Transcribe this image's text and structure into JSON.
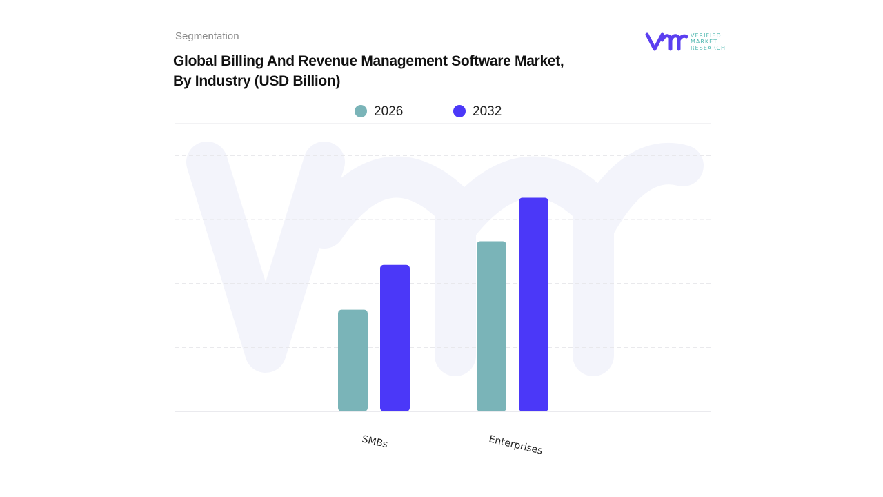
{
  "header": {
    "segment_label": "Segmentation",
    "title_line1": "Global Billing And Revenue Management Software Market,",
    "title_line2": "By Industry (USD Billion)"
  },
  "logo": {
    "text": "VERIFIED MARKET RESEARCH",
    "mark": "vmr"
  },
  "colors": {
    "series_2026": "#7ab4b8",
    "series_2032": "#4b38f8",
    "watermark": "#f3f4fb",
    "logo_teal": "#4fb8b0"
  },
  "chart_data": {
    "type": "bar",
    "title": "Global Billing And Revenue Management Software Market, By Industry (USD Billion)",
    "categories": [
      "SMBs",
      "Enterprises"
    ],
    "series": [
      {
        "name": "2026",
        "values": [
          1.59,
          2.66
        ]
      },
      {
        "name": "2032",
        "values": [
          2.29,
          3.34
        ]
      }
    ],
    "ylim": [
      0,
      4.5
    ],
    "gridlines": [
      1,
      2,
      3,
      4,
      4.5
    ],
    "grid": true,
    "y_tick_labels_shown": false,
    "legend_placement": "top-center",
    "xlabel": "",
    "ylabel": ""
  }
}
